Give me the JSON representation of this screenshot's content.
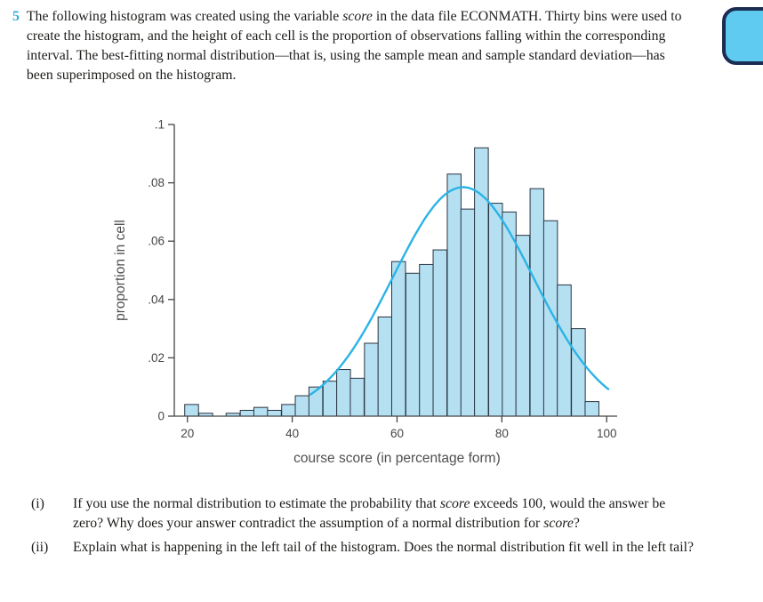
{
  "colors": {
    "accent_blue": "#29abe2",
    "text": "#1d1d1b",
    "axis": "#454545",
    "bar_fill": "#b4e0f2",
    "bar_stroke": "#2a3440",
    "curve": "#2bb3e6",
    "badge_fill": "#5fcbf0",
    "badge_border": "#1b2d52"
  },
  "problem": {
    "number": "5",
    "intro": [
      {
        "text": "The following histogram was created using the variable "
      },
      {
        "text": "score",
        "italic": true
      },
      {
        "text": " in the data file ECONMATH. Thirty bins were used to create the histogram, and the height of each cell is the proportion of observations falling within the corresponding interval. The best-fitting normal distribution—that is, using the sample mean and sample standard deviation—has been superimposed on the histogram."
      }
    ],
    "questions": [
      {
        "label": "(i)",
        "parts": [
          {
            "text": "If you use the normal distribution to estimate the probability that "
          },
          {
            "text": "score",
            "italic": true
          },
          {
            "text": " exceeds 100, would the answer be zero? Why does your answer contradict the assumption of a normal distribution for "
          },
          {
            "text": "score",
            "italic": true
          },
          {
            "text": "?"
          }
        ]
      },
      {
        "label": "(ii)",
        "parts": [
          {
            "text": "Explain what is happening in the left tail of the histogram. Does the normal distribution fit well in the left tail?"
          }
        ]
      }
    ]
  },
  "chart_data": {
    "type": "bar",
    "title": "",
    "xlabel": "course score (in percentage form)",
    "ylabel": "proportion in cell",
    "xlim": [
      17.5,
      102
    ],
    "ylim": [
      0,
      0.1
    ],
    "xticks": [
      20,
      40,
      60,
      80,
      100
    ],
    "yticks": [
      0,
      0.02,
      0.04,
      0.06,
      0.08,
      0.1
    ],
    "ytick_labels": [
      "0",
      ".02",
      ".04",
      ".06",
      ".08",
      ".1"
    ],
    "grid": false,
    "legend": false,
    "n_bins": 30,
    "bin_width": 2.63,
    "bins": [
      {
        "x": 20.8,
        "h": 0.004
      },
      {
        "x": 23.5,
        "h": 0.001
      },
      {
        "x": 26.1,
        "h": 0.0
      },
      {
        "x": 28.7,
        "h": 0.001
      },
      {
        "x": 31.4,
        "h": 0.002
      },
      {
        "x": 34.0,
        "h": 0.003
      },
      {
        "x": 36.6,
        "h": 0.002
      },
      {
        "x": 39.3,
        "h": 0.004
      },
      {
        "x": 41.9,
        "h": 0.007
      },
      {
        "x": 44.5,
        "h": 0.01
      },
      {
        "x": 47.2,
        "h": 0.012
      },
      {
        "x": 49.8,
        "h": 0.016
      },
      {
        "x": 52.4,
        "h": 0.013
      },
      {
        "x": 55.1,
        "h": 0.025
      },
      {
        "x": 57.7,
        "h": 0.034
      },
      {
        "x": 60.3,
        "h": 0.053
      },
      {
        "x": 63.0,
        "h": 0.049
      },
      {
        "x": 65.6,
        "h": 0.052
      },
      {
        "x": 68.2,
        "h": 0.057
      },
      {
        "x": 70.9,
        "h": 0.083
      },
      {
        "x": 73.5,
        "h": 0.071
      },
      {
        "x": 76.1,
        "h": 0.092
      },
      {
        "x": 78.8,
        "h": 0.073
      },
      {
        "x": 81.4,
        "h": 0.07
      },
      {
        "x": 84.0,
        "h": 0.062
      },
      {
        "x": 86.7,
        "h": 0.078
      },
      {
        "x": 89.3,
        "h": 0.067
      },
      {
        "x": 91.9,
        "h": 0.045
      },
      {
        "x": 94.6,
        "h": 0.03
      },
      {
        "x": 97.2,
        "h": 0.005
      }
    ],
    "normal_curve": {
      "mean": 72.6,
      "sd": 13.4,
      "peak": 0.0785,
      "x_start": 43.5,
      "x_end": 100.5
    }
  }
}
